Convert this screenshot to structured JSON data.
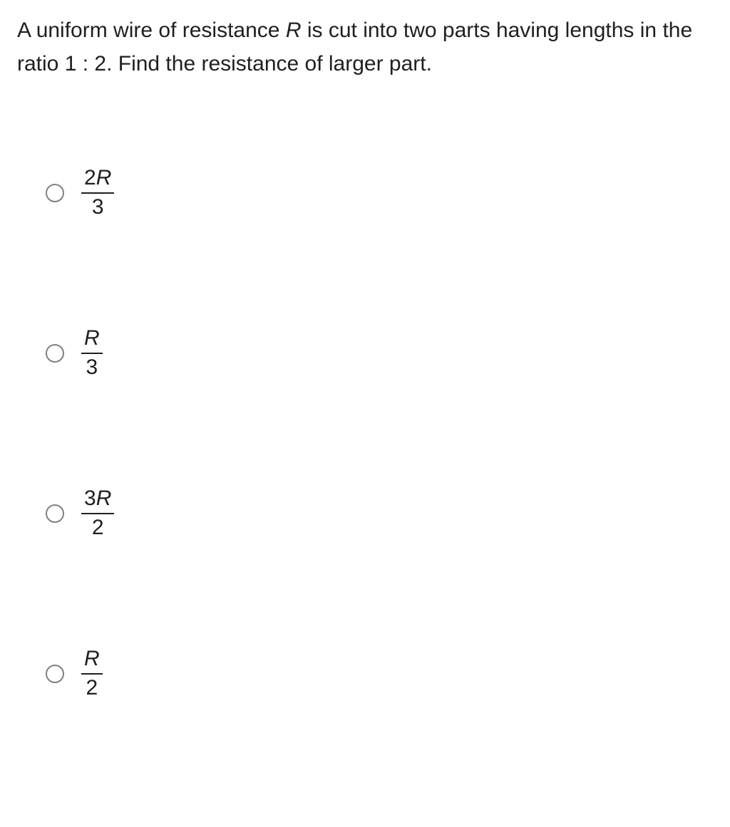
{
  "question": {
    "part1": "A uniform wire of resistance ",
    "variable": "R",
    "part2": " is cut into two parts having lengths in the ratio 1 : 2. Find the resistance of larger part."
  },
  "options": [
    {
      "numerator_prefix": "2",
      "numerator_var": "R",
      "denominator": "3"
    },
    {
      "numerator_prefix": "",
      "numerator_var": "R",
      "denominator": "3"
    },
    {
      "numerator_prefix": "3",
      "numerator_var": "R",
      "denominator": "2"
    },
    {
      "numerator_prefix": "",
      "numerator_var": "R",
      "denominator": "2"
    }
  ],
  "style": {
    "background_color": "#ffffff",
    "text_color": "#202020",
    "radio_border_color": "#808080",
    "font_size_question": 30,
    "font_size_option": 30,
    "line_height": 1.55
  }
}
